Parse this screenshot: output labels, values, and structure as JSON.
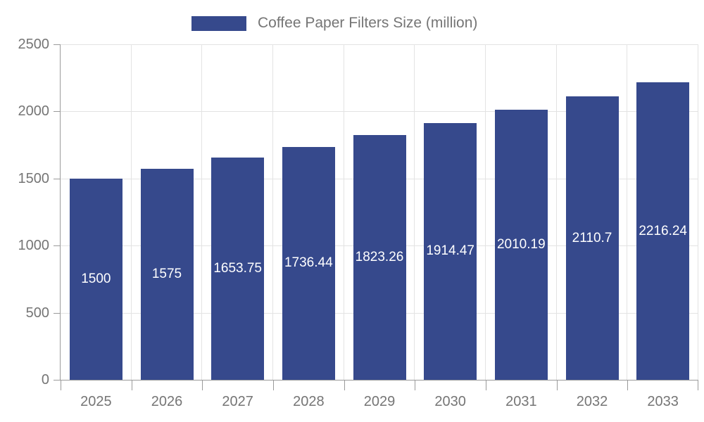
{
  "legend": {
    "label": "Coffee Paper Filters Size (million)"
  },
  "chart_data": {
    "type": "bar",
    "title": "Coffee Paper Filters Size (million)",
    "series_name": "Coffee Paper Filters Size (million)",
    "categories": [
      "2025",
      "2026",
      "2027",
      "2028",
      "2029",
      "2030",
      "2031",
      "2032",
      "2033"
    ],
    "values": [
      1500,
      1575,
      1653.75,
      1736.44,
      1823.26,
      1914.47,
      2010.19,
      2110.7,
      2216.24
    ],
    "value_labels": [
      "1500",
      "1575",
      "1653.75",
      "1736.44",
      "1823.26",
      "1914.47",
      "2010.19",
      "2110.7",
      "2216.24"
    ],
    "xlabel": "",
    "ylabel": "",
    "ylim": [
      0,
      2500
    ],
    "yticks": [
      0,
      500,
      1000,
      1500,
      2000,
      2500
    ],
    "grid": true,
    "legend_position": "top-center",
    "colors": {
      "bar": "#36498c",
      "axis_line": "#9a9a9a",
      "gridline": "#e3e3e3",
      "tick_label": "#757575",
      "value_label": "#ffffff",
      "background": "#ffffff"
    }
  }
}
